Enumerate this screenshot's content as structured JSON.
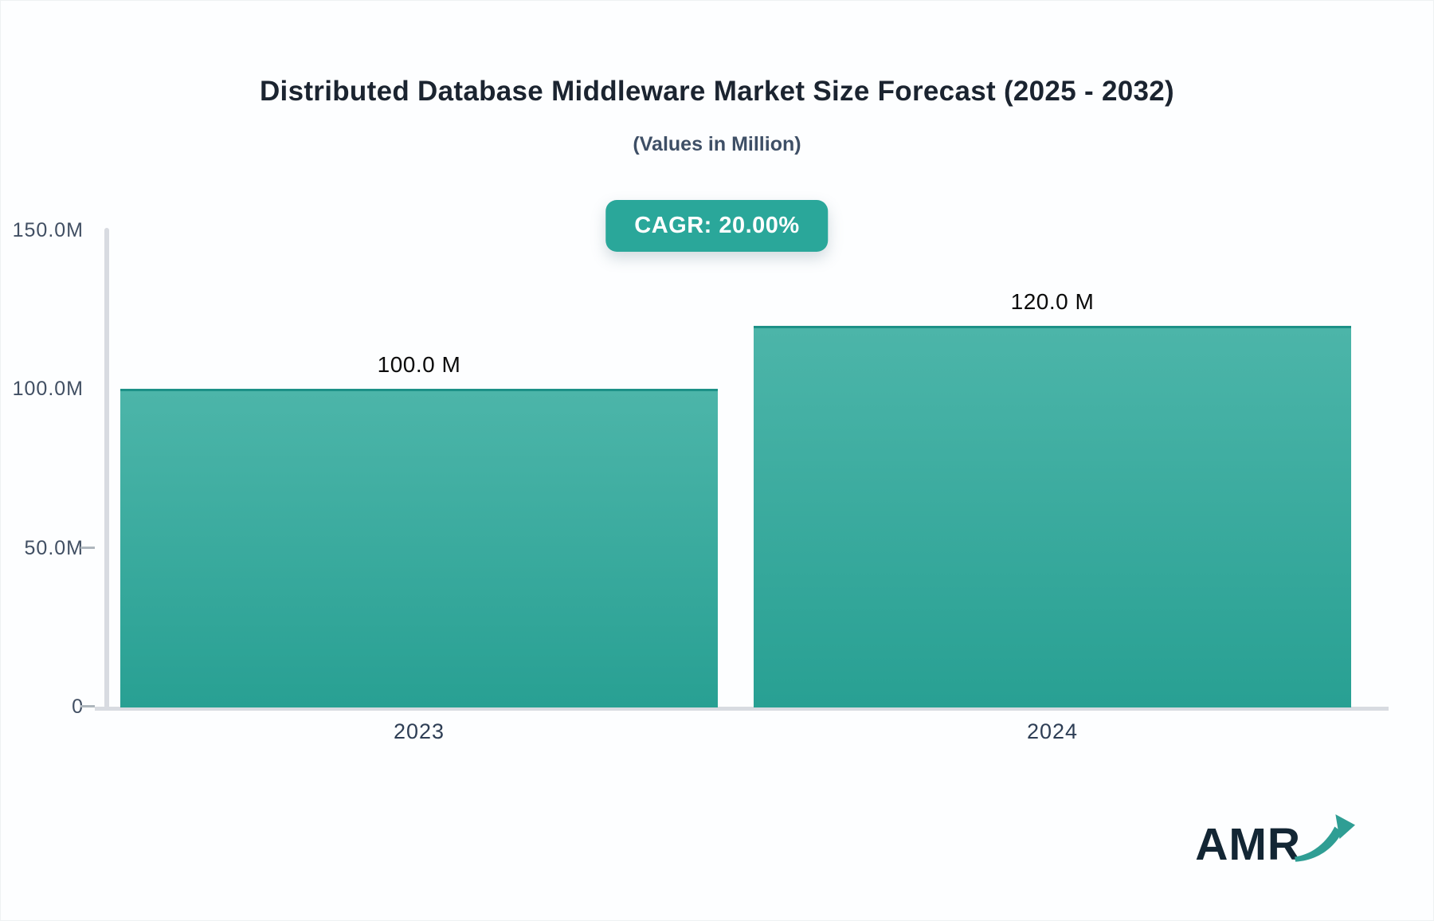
{
  "chart_data": {
    "type": "bar",
    "title": "Distributed Database Middleware Market Size Forecast (2025 - 2032)",
    "subtitle": "(Values in Million)",
    "badge": "CAGR: 20.00%",
    "categories": [
      "2023",
      "2024"
    ],
    "values": [
      100.0,
      120.0
    ],
    "value_labels": [
      "100.0 M",
      "120.0 M"
    ],
    "unit": "Million",
    "xlabel": "",
    "ylabel": "",
    "ylim": [
      0,
      150
    ],
    "yticks": [
      {
        "label": "150.0M",
        "value": 150,
        "dash": false
      },
      {
        "label": "100.0M",
        "value": 100,
        "dash": false
      },
      {
        "label": "50.0M",
        "value": 50,
        "dash": true
      },
      {
        "label": "0",
        "value": 0,
        "dash": true
      }
    ],
    "grid": false,
    "legend": false
  },
  "branding": {
    "logo_text": "AMR",
    "arrow_icon": "growth-arrow-icon"
  },
  "colors": {
    "title_text": "#1b2430",
    "badge_bg": "#2aa79a",
    "bar_gradient_top": "#4cb5a9",
    "bar_gradient_bottom": "#28a093",
    "bar_border": "#1d9187",
    "axis_line": "#d8dbe1",
    "tick_text": "#414f63",
    "category_text": "#2e3e55",
    "logo_navy": "#132634",
    "logo_teal": "#2f9e94"
  }
}
